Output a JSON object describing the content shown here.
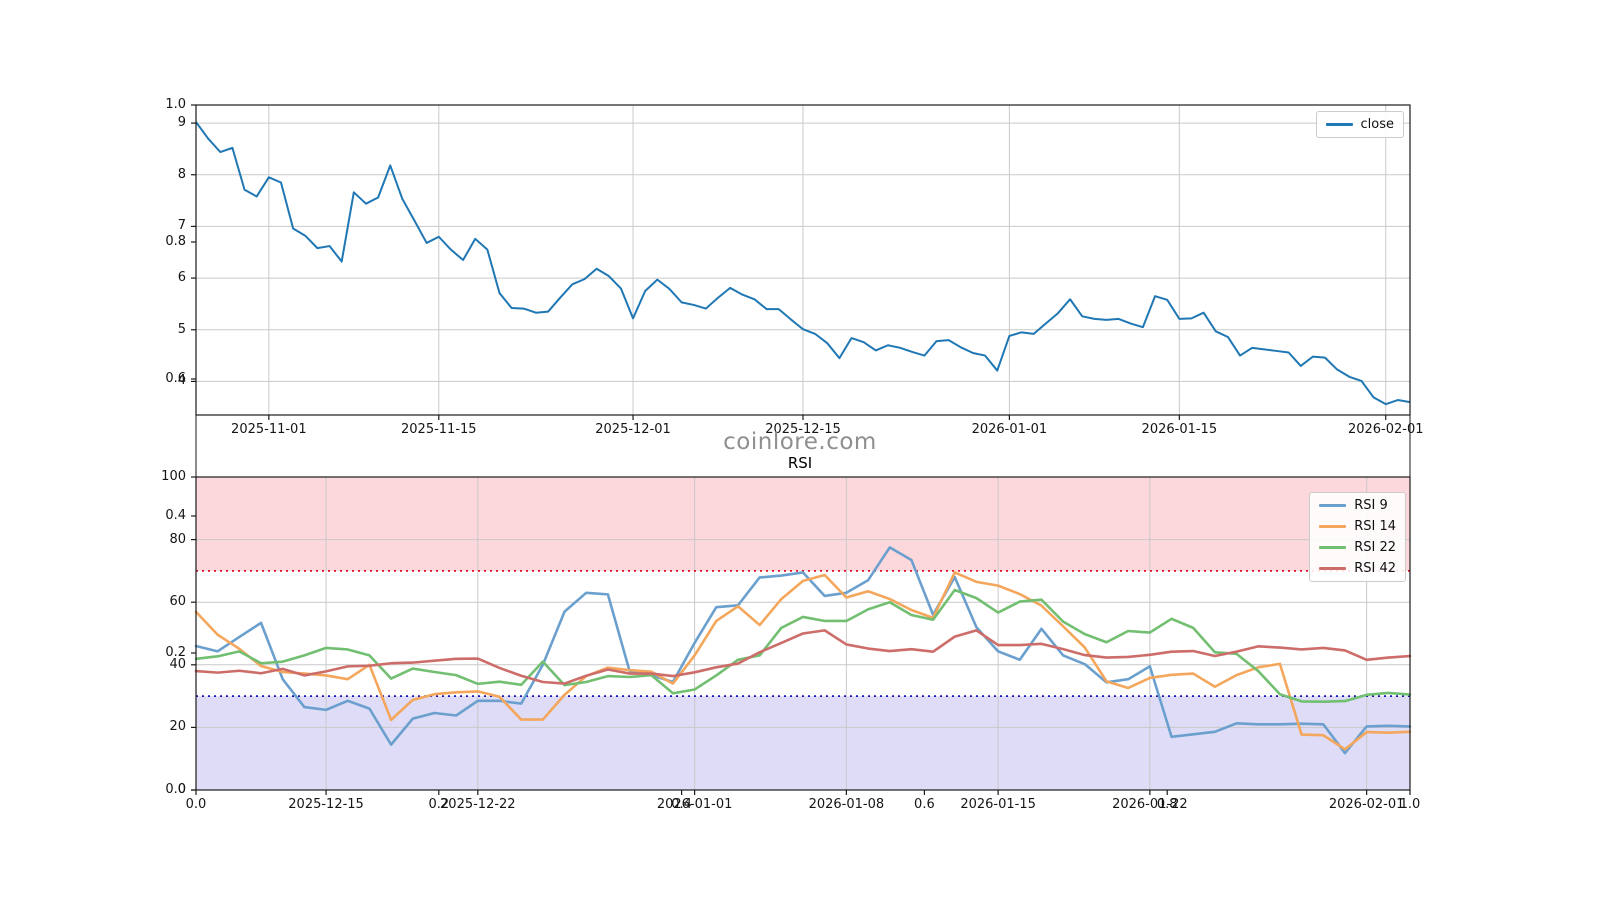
{
  "watermark": "coinlore.com",
  "overlay_axis": {
    "x_ticks": [
      "0.0",
      "0.2",
      "0.4",
      "0.6",
      "0.8",
      "1.0"
    ],
    "y_ticks": [
      "1.0",
      "0.8",
      "0.6",
      "0.4",
      "0.2",
      "0.0"
    ]
  },
  "chart_data": [
    {
      "type": "line",
      "title": "",
      "legend_label": "close",
      "legend_position": "upper right",
      "line_color": "#1f77b4",
      "grid": true,
      "x_start_date": "2025-10-26",
      "x_ticks": [
        {
          "label": "2025-11-01",
          "i": 6
        },
        {
          "label": "2025-11-15",
          "i": 20
        },
        {
          "label": "2025-12-01",
          "i": 36
        },
        {
          "label": "2025-12-15",
          "i": 50
        },
        {
          "label": "2026-01-01",
          "i": 67
        },
        {
          "label": "2026-01-15",
          "i": 81
        },
        {
          "label": "2026-02-01",
          "i": 98
        }
      ],
      "y_ticks": [
        9,
        8,
        7,
        6,
        5,
        4
      ],
      "ylim": [
        3.35,
        9.35
      ],
      "values": [
        9.02,
        8.7,
        8.44,
        8.52,
        7.71,
        7.58,
        7.95,
        7.85,
        6.96,
        6.82,
        6.58,
        6.62,
        6.32,
        7.66,
        7.44,
        7.56,
        8.18,
        7.53,
        7.11,
        6.68,
        6.8,
        6.55,
        6.35,
        6.76,
        6.55,
        5.71,
        5.42,
        5.41,
        5.33,
        5.35,
        5.62,
        5.88,
        5.98,
        6.18,
        6.04,
        5.8,
        5.22,
        5.75,
        5.97,
        5.79,
        5.53,
        5.48,
        5.41,
        5.62,
        5.81,
        5.68,
        5.59,
        5.4,
        5.4,
        5.2,
        5.01,
        4.92,
        4.74,
        4.45,
        4.84,
        4.76,
        4.6,
        4.7,
        4.65,
        4.57,
        4.5,
        4.78,
        4.8,
        4.66,
        4.55,
        4.5,
        4.21,
        4.88,
        4.95,
        4.92,
        5.12,
        5.32,
        5.59,
        5.26,
        5.21,
        5.19,
        5.21,
        5.12,
        5.05,
        5.65,
        5.58,
        5.21,
        5.22,
        5.33,
        4.97,
        4.86,
        4.5,
        4.65,
        4.62,
        4.59,
        4.56,
        4.3,
        4.48,
        4.46,
        4.23,
        4.09,
        4.01,
        3.69,
        3.56,
        3.64,
        3.6
      ]
    },
    {
      "type": "line",
      "title": "RSI",
      "legend_position": "upper right",
      "grid": true,
      "x_start_date": "2025-12-09",
      "x_ticks": [
        {
          "label": "2025-12-15",
          "i": 6
        },
        {
          "label": "2025-12-22",
          "i": 13
        },
        {
          "label": "2026-01-01",
          "i": 23
        },
        {
          "label": "2026-01-08",
          "i": 30
        },
        {
          "label": "2026-01-15",
          "i": 37
        },
        {
          "label": "2026-01-22",
          "i": 44
        },
        {
          "label": "2026-02-01",
          "i": 54
        }
      ],
      "y_ticks": [
        100,
        80,
        60,
        40,
        20,
        0
      ],
      "ylim": [
        0,
        100
      ],
      "overbought_level": 70,
      "oversold_level": 30,
      "overbought_line_color": "#dd1122",
      "oversold_line_color": "#1515b5",
      "overbought_band_color": "#fcd8dc",
      "oversold_band_color": "#dedcf6",
      "series": [
        {
          "name": "RSI 9",
          "color": "#6ba0ce",
          "values": [
            46,
            44.3,
            48.9,
            53.4,
            35.4,
            26.5,
            25.6,
            28.5,
            26,
            14.5,
            22.8,
            24.6,
            23.8,
            28.5,
            28.5,
            27.6,
            40,
            57,
            63,
            62.5,
            38,
            36.7,
            34.5,
            47,
            58.4,
            59,
            67.9,
            68.5,
            69.5,
            62,
            63,
            67,
            77.5,
            73.5,
            56,
            68,
            52,
            44.3,
            41.6,
            51.5,
            43,
            40.2,
            34.4,
            35.4,
            39.5,
            17,
            17.8,
            18.6,
            21.3,
            21,
            21,
            21.2,
            21,
            11.8,
            20.3,
            20.5,
            20.3
          ]
        },
        {
          "name": "RSI 14",
          "color": "#f4a75c",
          "values": [
            56.9,
            49.6,
            45.1,
            39.6,
            37.7,
            37.2,
            36.6,
            35.4,
            40,
            22.4,
            28.8,
            30.6,
            31.2,
            31.5,
            29.8,
            22.5,
            22.5,
            30.4,
            36.4,
            39.1,
            38.3,
            37.8,
            34,
            43,
            54,
            58.7,
            52.7,
            61,
            66.8,
            68.7,
            61.5,
            63.5,
            61,
            57.5,
            55,
            69.5,
            66.5,
            65.3,
            62.6,
            58.9,
            52.3,
            45.5,
            34.7,
            32.6,
            35.8,
            36.8,
            37.2,
            33,
            36.7,
            39.2,
            40.3,
            17.7,
            17.5,
            13,
            18.5,
            18.3,
            18.6
          ]
        },
        {
          "name": "RSI 22",
          "color": "#72bf72",
          "values": [
            41.9,
            42.7,
            44.3,
            40.5,
            41,
            43,
            45.4,
            44.9,
            43,
            35.6,
            38.8,
            37.7,
            36.7,
            33.9,
            34.6,
            33.6,
            41,
            33.5,
            34.5,
            36.4,
            36.1,
            36.7,
            30.9,
            32.1,
            36.6,
            41.6,
            43,
            51.8,
            55.3,
            54,
            54,
            57.7,
            60,
            55.9,
            54.4,
            63.9,
            61.3,
            56.7,
            60.2,
            60.8,
            53.8,
            49.8,
            47.2,
            50.8,
            50.3,
            54.7,
            51.8,
            44,
            43.5,
            38,
            30.6,
            28.3,
            28.2,
            28.4,
            30.4,
            31,
            30.5
          ]
        },
        {
          "name": "RSI 42",
          "color": "#cd6d6a",
          "values": [
            38,
            37.5,
            38.1,
            37.3,
            38.7,
            36.6,
            37.9,
            39.5,
            39.7,
            40.5,
            40.7,
            41.3,
            41.9,
            42,
            39,
            36.5,
            34.5,
            34,
            36.5,
            38.5,
            37.2,
            37.2,
            36.4,
            37.6,
            39.2,
            40.4,
            44,
            47,
            50,
            51,
            46.5,
            45.2,
            44.4,
            45,
            44.2,
            49,
            51,
            46.3,
            46.3,
            46.7,
            45,
            43.1,
            42.3,
            42.5,
            43.2,
            44.2,
            44.4,
            42.8,
            44.2,
            45.9,
            45.5,
            44.9,
            45.4,
            44.6,
            41.6,
            42.3,
            42.8
          ]
        }
      ]
    }
  ]
}
